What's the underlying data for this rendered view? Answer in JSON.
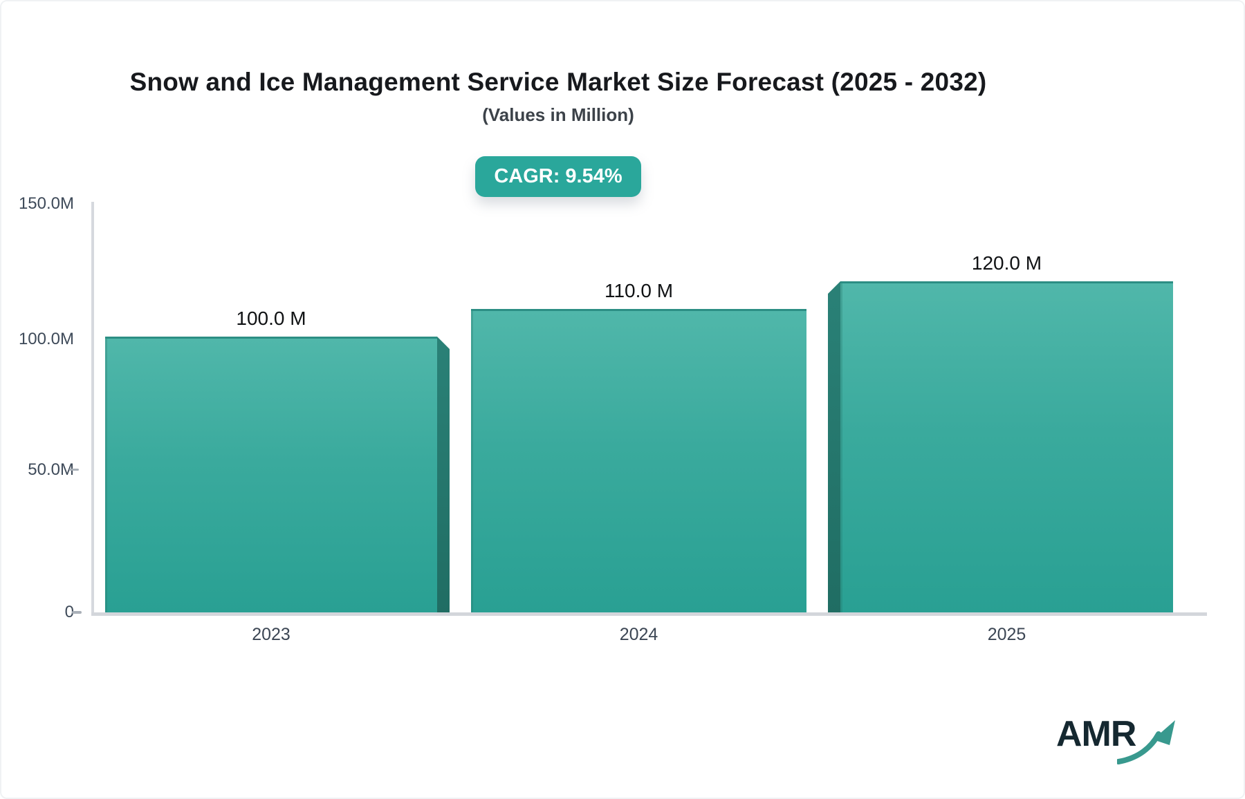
{
  "title": "Snow and Ice Management Service Market Size Forecast (2025 - 2032)",
  "subtitle": "(Values in Million)",
  "cagr_badge": "CAGR: 9.54%",
  "logo": {
    "text": "AMR"
  },
  "colors": {
    "accent_teal": "#2aa79b",
    "bar_gradient_top": "#50b7aa",
    "bar_gradient_bottom": "#29a093",
    "bar_side_shade": "#27796f",
    "axis_gray": "#d5d8dd",
    "label_gray": "#3e4a59"
  },
  "chart_data": {
    "type": "bar",
    "title": "Snow and Ice Management Service Market Size Forecast (2025 - 2032)",
    "subtitle": "(Values in Million)",
    "unit": "Million",
    "categories": [
      "2023",
      "2024",
      "2025"
    ],
    "values": [
      100.0,
      110.0,
      120.0
    ],
    "bar_labels": [
      "100.0 M",
      "110.0 M",
      "120.0 M"
    ],
    "yticks": [
      "150.0M",
      "100.0M",
      "50.0M",
      "0"
    ],
    "ylim": [
      0,
      150
    ],
    "xlabel": "",
    "ylabel": "",
    "grid": false,
    "legend": "none",
    "annotations": [
      "CAGR: 9.54%"
    ]
  }
}
